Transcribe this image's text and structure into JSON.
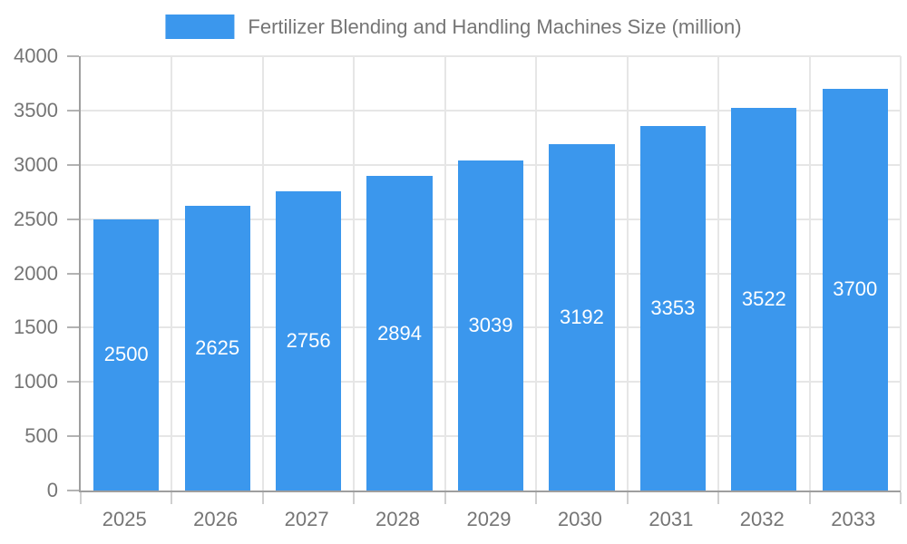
{
  "chart_data": {
    "type": "bar",
    "title": "Fertilizer Blending and Handling Machines Size (million)",
    "legend": [
      "Fertilizer Blending and Handling Machines Size (million)"
    ],
    "legend_position": "top-center",
    "categories": [
      "2025",
      "2026",
      "2027",
      "2028",
      "2029",
      "2030",
      "2031",
      "2032",
      "2033"
    ],
    "series": [
      {
        "name": "Fertilizer Blending and Handling Machines Size (million)",
        "values": [
          2500,
          2625,
          2756,
          2894,
          3039,
          3192,
          3353,
          3522,
          3700
        ]
      }
    ],
    "xlabel": "",
    "ylabel": "",
    "ylim": [
      0,
      4000
    ],
    "ytick_step": 500,
    "grid": true,
    "bar_labels_inside": true,
    "colors": {
      "bar": "#3B97ED",
      "bar_label": "#FFFFFF",
      "axis_text": "#757575",
      "axis_line": "#9E9E9E",
      "gridline": "#E6E6E6",
      "background": "#FFFFFF"
    }
  }
}
